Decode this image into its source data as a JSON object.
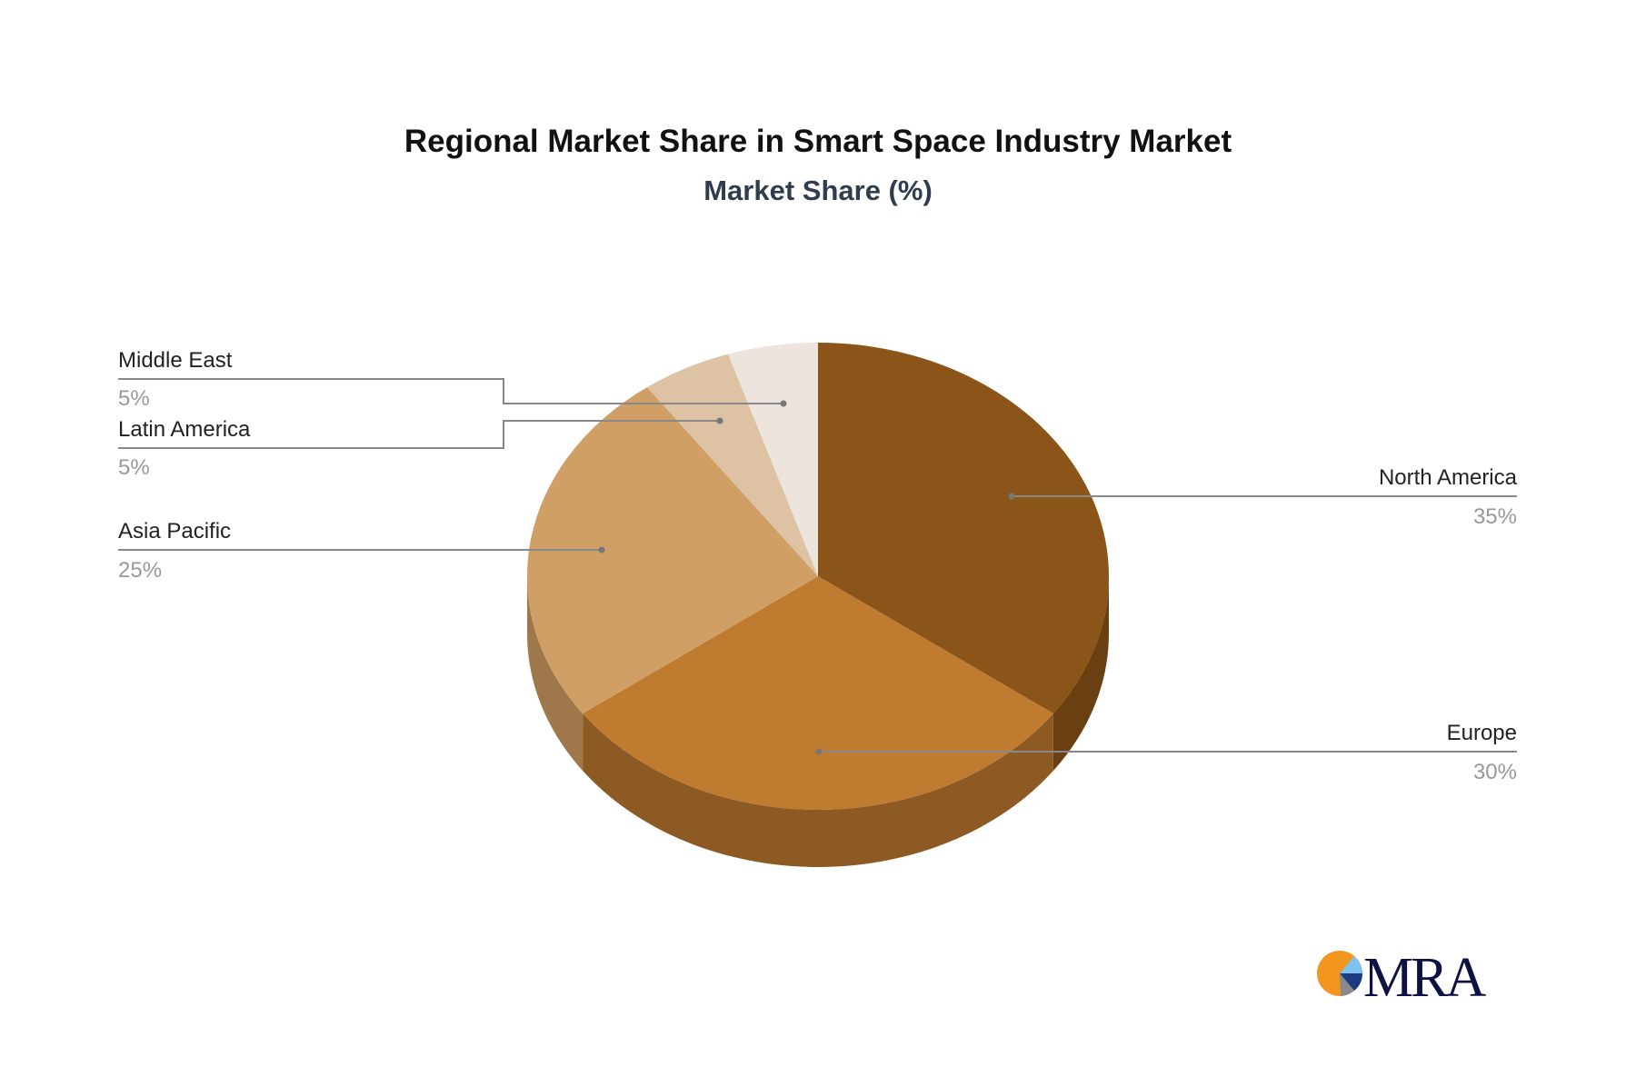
{
  "chart_data": {
    "type": "pie",
    "title": "Regional Market Share in Smart Space Industry Market",
    "subtitle": "Market Share (%)",
    "categories": [
      "North America",
      "Europe",
      "Asia Pacific",
      "Latin America",
      "Middle East"
    ],
    "values": [
      35,
      30,
      25,
      5,
      5
    ],
    "labels": [
      "35%",
      "30%",
      "25%",
      "5%",
      "5%"
    ],
    "colors": [
      "#8B5519",
      "#BF7B30",
      "#D09F66",
      "#DDC2A4",
      "#EDE4DD"
    ],
    "side_colors": [
      "#6A4012",
      "#8D5A24",
      "#9E784A",
      "#A8927B",
      "#B5ACA5"
    ],
    "style": "3d"
  },
  "logo": {
    "text": "MRA",
    "colors": [
      "#F3961F",
      "#7EC3EE",
      "#1D3A83",
      "#8A8A8A",
      "#0E1240"
    ]
  }
}
